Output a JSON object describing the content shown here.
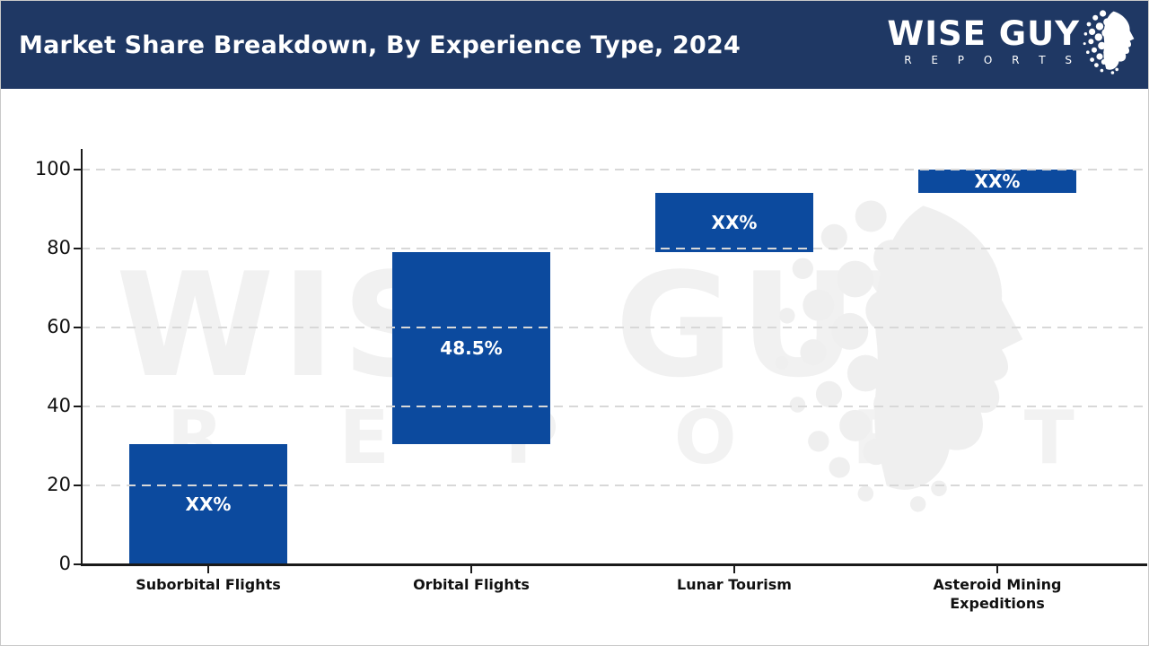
{
  "header": {
    "title": "Market Share Breakdown, By Experience Type, 2024",
    "bg_color": "#1f3864",
    "logo": {
      "name": "WISE GUY",
      "sub": "R E P O R T S",
      "icon": "dotted-face-profile"
    }
  },
  "watermark": {
    "line1": "WISE GUY",
    "line2": "R E P O R T S"
  },
  "chart_data": {
    "type": "bar",
    "subtype": "waterfall",
    "title": "Market Share Breakdown, By Experience Type, 2024",
    "categories": [
      "Suborbital Flights",
      "Orbital Flights",
      "Lunar Tourism",
      "Asteroid Mining Expeditions"
    ],
    "segments": [
      {
        "category": "Suborbital Flights",
        "start": 0,
        "end": 30.5,
        "label": "XX%"
      },
      {
        "category": "Orbital Flights",
        "start": 30.5,
        "end": 79,
        "label": "48.5%"
      },
      {
        "category": "Lunar Tourism",
        "start": 79,
        "end": 94.2,
        "label": "XX%"
      },
      {
        "category": "Asteroid Mining Expeditions",
        "start": 94.2,
        "end": 100,
        "label": "XX%"
      }
    ],
    "yticks": [
      0,
      20,
      40,
      60,
      80,
      100
    ],
    "ylim": [
      0,
      105
    ],
    "xlabel": "",
    "ylabel": "",
    "bar_color": "#0c4a9e",
    "label_color": "#ffffff",
    "grid": {
      "show": true,
      "style": "dashed",
      "color": "#d8d8d8",
      "axis": "y"
    },
    "legend": "none"
  }
}
